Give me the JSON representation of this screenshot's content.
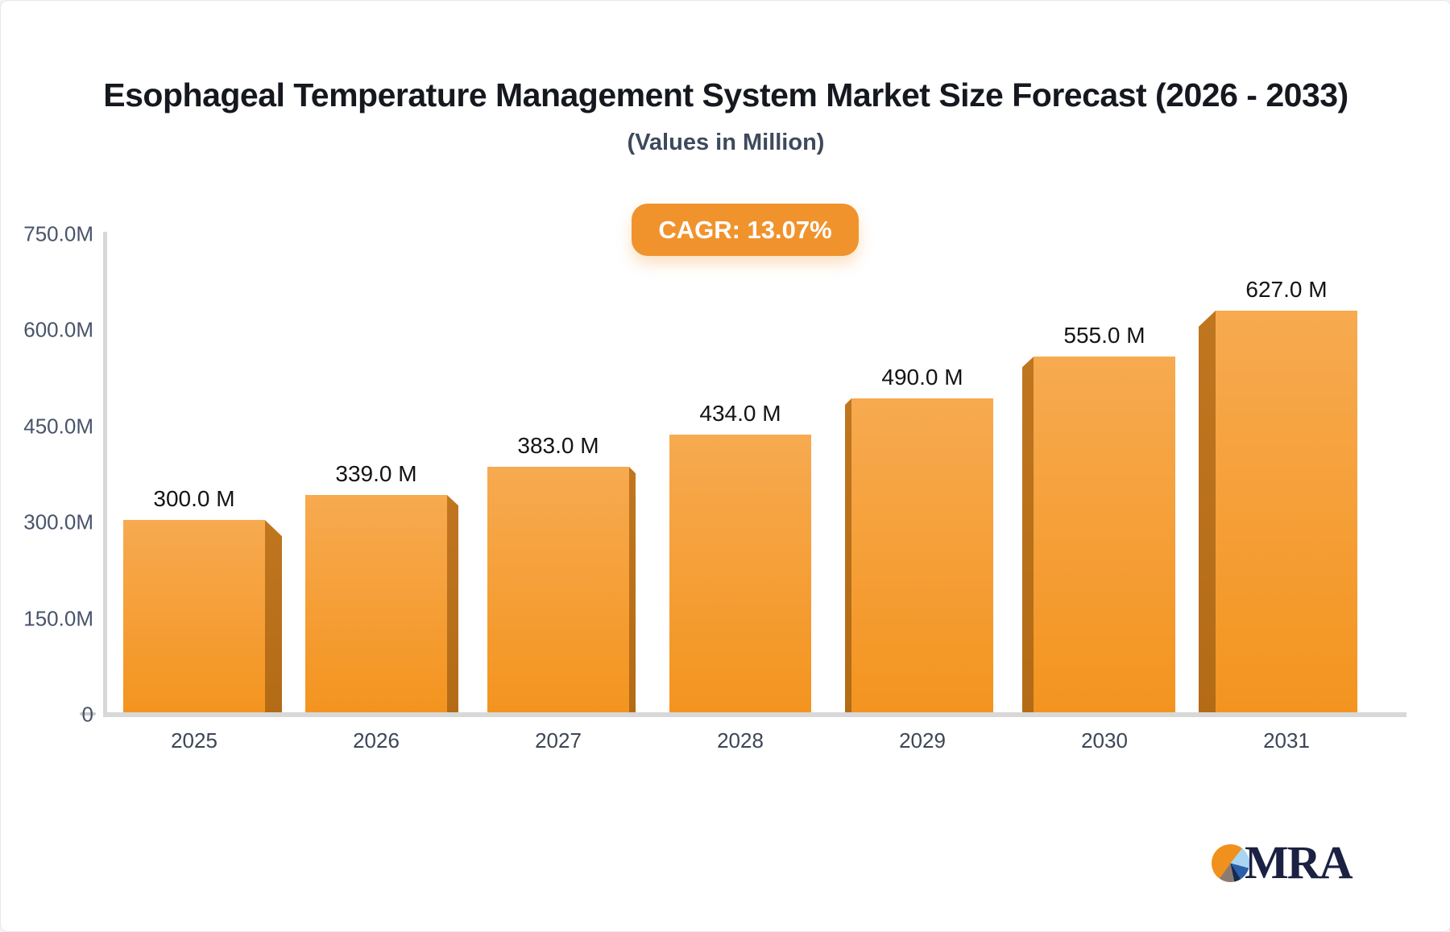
{
  "title": "Esophageal Temperature Management System Market Size Forecast (2026 - 2033)",
  "subtitle": "(Values in Million)",
  "badge": {
    "label": "CAGR: 13.07%"
  },
  "logo": {
    "text": "MRA",
    "icon": "pie-chart-icon"
  },
  "colors": {
    "bar_face_top": "#F7AA50",
    "bar_face_bottom": "#F3941F",
    "bar_side": "#B96F1A",
    "badge_bg": "#F0932D",
    "axis_line": "#D8D8D8",
    "title_text": "#15181E",
    "subtitle_text": "#3D4A5C",
    "logo_navy": "#1A2142"
  },
  "chart_data": {
    "type": "bar",
    "title": "Esophageal Temperature Management System Market Size Forecast (2026 - 2033)",
    "subtitle": "(Values in Million)",
    "categories": [
      "2025",
      "2026",
      "2027",
      "2028",
      "2029",
      "2030",
      "2031"
    ],
    "values": [
      300,
      339,
      383,
      434,
      490,
      555,
      627
    ],
    "value_labels": [
      "300.0 M",
      "339.0 M",
      "383.0 M",
      "434.0 M",
      "490.0 M",
      "555.0 M",
      "627.0 M"
    ],
    "unit": "Million",
    "xlabel": "",
    "ylabel": "",
    "ylim": [
      0,
      750
    ],
    "y_ticks": [
      {
        "value": 0,
        "label": "0"
      },
      {
        "value": 150,
        "label": "150.0M"
      },
      {
        "value": 300,
        "label": "300.0M"
      },
      {
        "value": 450,
        "label": "450.0M"
      },
      {
        "value": 600,
        "label": "600.0M"
      },
      {
        "value": 750,
        "label": "750.0M"
      }
    ],
    "grid": false,
    "legend": "none",
    "style": "3d-perspective-bars, darker side panels facing chart center"
  }
}
